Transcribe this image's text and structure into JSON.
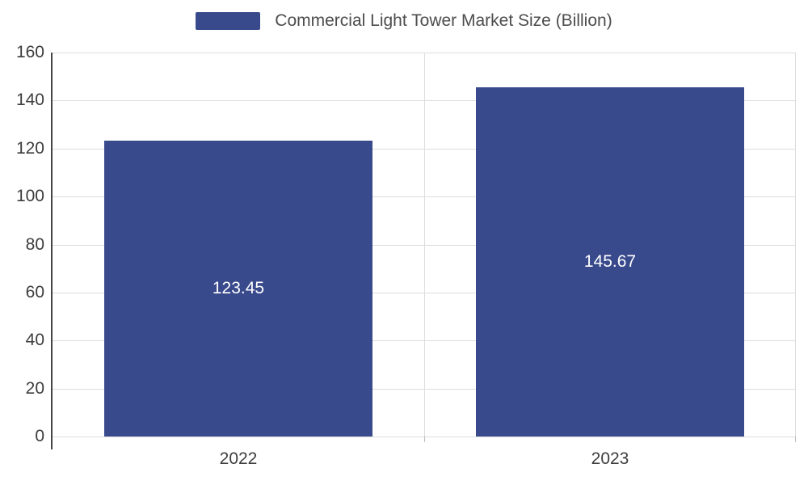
{
  "chart_data": {
    "type": "bar",
    "title": "",
    "series_name": "Commercial Light Tower Market Size (Billion)",
    "categories": [
      "2022",
      "2023"
    ],
    "values": [
      123.45,
      145.67
    ],
    "value_labels": [
      "123.45",
      "145.67"
    ],
    "ylabel": "",
    "xlabel": "",
    "ylim": [
      0,
      160
    ],
    "ytick_step": 20,
    "ytick_labels": [
      "0",
      "20",
      "40",
      "60",
      "80",
      "100",
      "120",
      "140",
      "160"
    ],
    "grid": "horizontal-and-category-boundaries",
    "legend_position": "top-center",
    "colors": {
      "bar": "#394A8C",
      "value_label": "#ffffff",
      "tick_label": "#3d3d3d",
      "legend_label": "#4d4d4d",
      "gridline": "#dddddd",
      "axis_spine": "#444444",
      "background": "#ffffff"
    }
  }
}
